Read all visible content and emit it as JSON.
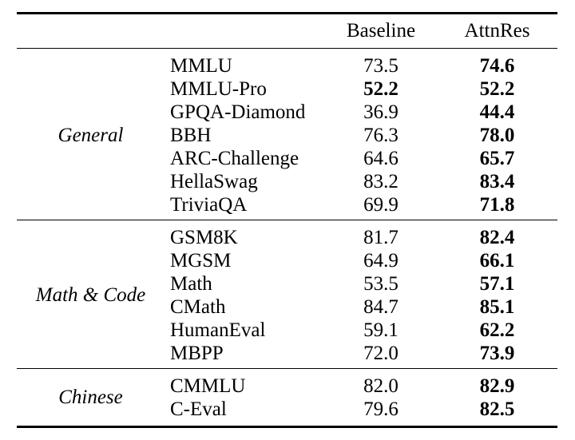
{
  "page": {
    "background": "#ffffff",
    "text_color": "#000000"
  },
  "table": {
    "header": {
      "baseline": "Baseline",
      "attnres": "AttnRes"
    },
    "groups": [
      {
        "category": "General",
        "rows": [
          {
            "benchmark": "MMLU",
            "baseline": "73.5",
            "attnres": "74.6",
            "baseline_bold": false,
            "attnres_bold": true
          },
          {
            "benchmark": "MMLU-Pro",
            "baseline": "52.2",
            "attnres": "52.2",
            "baseline_bold": true,
            "attnres_bold": true
          },
          {
            "benchmark": "GPQA-Diamond",
            "baseline": "36.9",
            "attnres": "44.4",
            "baseline_bold": false,
            "attnres_bold": true
          },
          {
            "benchmark": "BBH",
            "baseline": "76.3",
            "attnres": "78.0",
            "baseline_bold": false,
            "attnres_bold": true
          },
          {
            "benchmark": "ARC-Challenge",
            "baseline": "64.6",
            "attnres": "65.7",
            "baseline_bold": false,
            "attnres_bold": true
          },
          {
            "benchmark": "HellaSwag",
            "baseline": "83.2",
            "attnres": "83.4",
            "baseline_bold": false,
            "attnres_bold": true
          },
          {
            "benchmark": "TriviaQA",
            "baseline": "69.9",
            "attnres": "71.8",
            "baseline_bold": false,
            "attnres_bold": true
          }
        ]
      },
      {
        "category": "Math & Code",
        "rows": [
          {
            "benchmark": "GSM8K",
            "baseline": "81.7",
            "attnres": "82.4",
            "baseline_bold": false,
            "attnres_bold": true
          },
          {
            "benchmark": "MGSM",
            "baseline": "64.9",
            "attnres": "66.1",
            "baseline_bold": false,
            "attnres_bold": true
          },
          {
            "benchmark": "Math",
            "baseline": "53.5",
            "attnres": "57.1",
            "baseline_bold": false,
            "attnres_bold": true
          },
          {
            "benchmark": "CMath",
            "baseline": "84.7",
            "attnres": "85.1",
            "baseline_bold": false,
            "attnres_bold": true
          },
          {
            "benchmark": "HumanEval",
            "baseline": "59.1",
            "attnres": "62.2",
            "baseline_bold": false,
            "attnres_bold": true
          },
          {
            "benchmark": "MBPP",
            "baseline": "72.0",
            "attnres": "73.9",
            "baseline_bold": false,
            "attnres_bold": true
          }
        ]
      },
      {
        "category": "Chinese",
        "rows": [
          {
            "benchmark": "CMMLU",
            "baseline": "82.0",
            "attnres": "82.9",
            "baseline_bold": false,
            "attnres_bold": true
          },
          {
            "benchmark": "C-Eval",
            "baseline": "79.6",
            "attnres": "82.5",
            "baseline_bold": false,
            "attnres_bold": true
          }
        ]
      }
    ]
  }
}
